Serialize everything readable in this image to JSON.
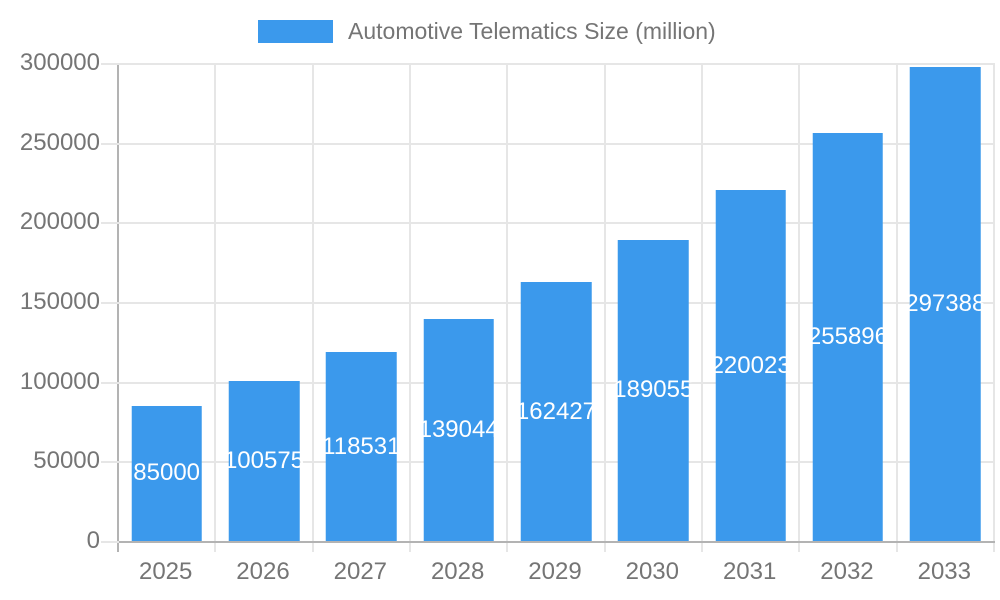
{
  "legend": {
    "label": "Automotive Telematics Size (million)",
    "swatch_color": "#3b99ec"
  },
  "chart_data": {
    "type": "bar",
    "title": "Automotive Telematics Size (million)",
    "categories": [
      "2025",
      "2026",
      "2027",
      "2028",
      "2029",
      "2030",
      "2031",
      "2032",
      "2033"
    ],
    "values": [
      85000,
      100575,
      118531,
      139044,
      162427,
      189055,
      220023,
      255896,
      297388
    ],
    "series": [
      {
        "name": "Automotive Telematics Size (million)",
        "values": [
          85000,
          100575,
          118531,
          139044,
          162427,
          189055,
          220023,
          255896,
          297388
        ]
      }
    ],
    "xlabel": "",
    "ylabel": "",
    "ylim": [
      0,
      300000
    ],
    "ytick_step": 50000,
    "yticks": [
      "0",
      "50000",
      "100000",
      "150000",
      "200000",
      "250000",
      "300000"
    ],
    "grid": true,
    "legend_position": "top",
    "bar_color": "#3b99ec",
    "bar_label_color": "#ffffff",
    "axis_line_color": "#b3b3b3",
    "gridline_color": "#e6e6e6",
    "axis_text_color": "#757575"
  }
}
